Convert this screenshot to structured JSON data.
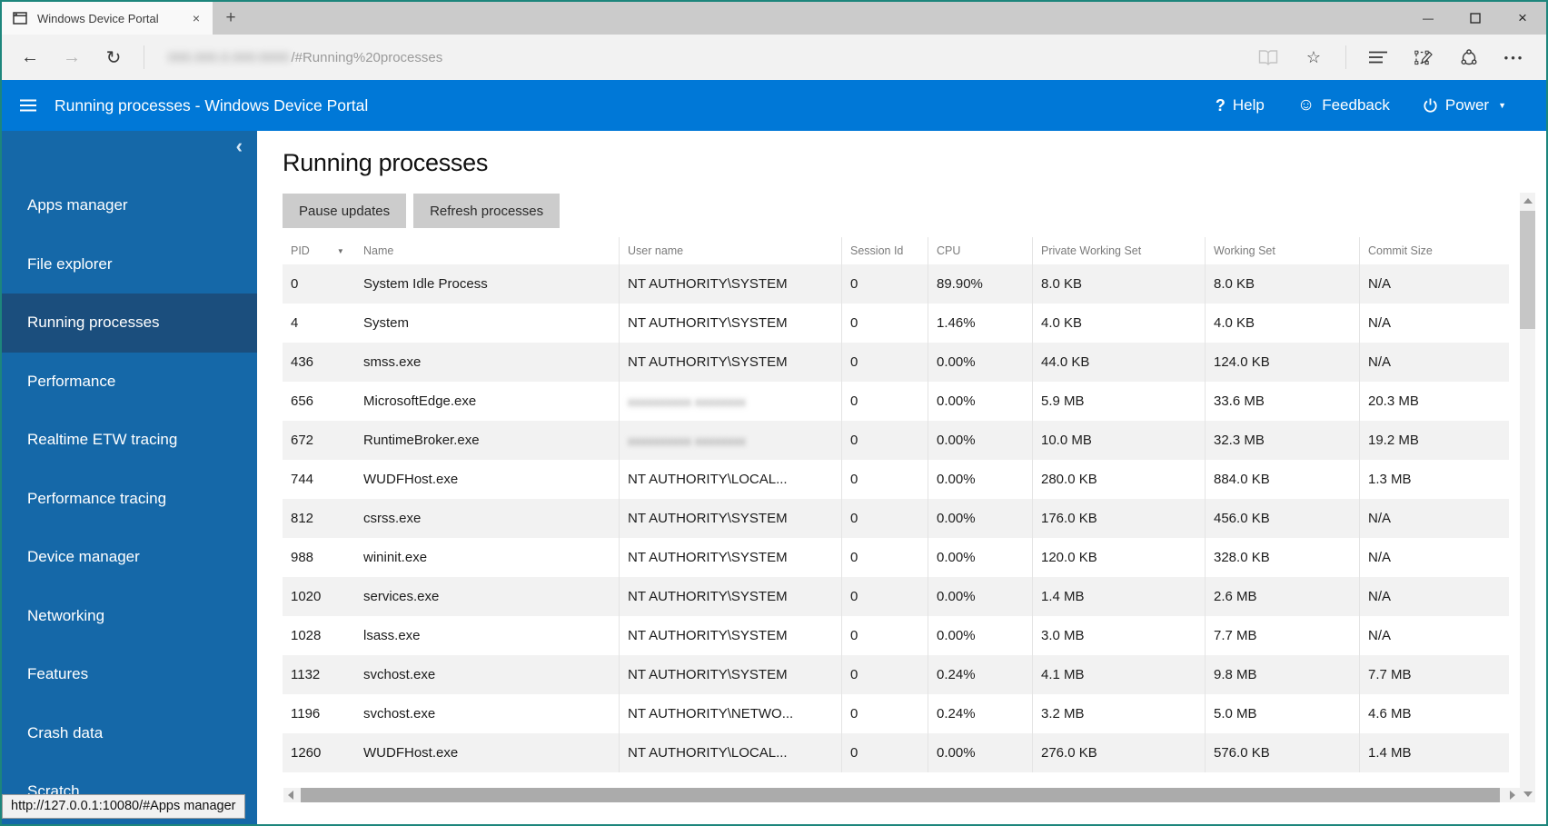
{
  "colors": {
    "accent_blue": "#0078d7",
    "sidebar_blue": "#1568a8",
    "sidebar_selected": "#1b4e7d",
    "window_border_teal": "#1d867c",
    "row_alt": "#f2f2f2"
  },
  "icons": {
    "tab_close": "×",
    "new_tab": "+",
    "minimize": "—",
    "window_close": "×",
    "back": "←",
    "forward": "→",
    "refresh": "↻",
    "star": "☆",
    "more": "•••",
    "help": "?",
    "feedback_smiley": "☺",
    "caret_down": "▼",
    "collapse_chevron": "‹",
    "sort_arrow": "▼"
  },
  "browser": {
    "tab_bar": {
      "active_tab_title": "Windows Device Portal"
    },
    "toolbar": {
      "url_prefix_redacted": true,
      "url_redacted_placeholder": "000.000.0.000:0000",
      "url_visible_suffix": "/#Running%20processes"
    },
    "status_tooltip": "http://127.0.0.1:10080/#Apps manager"
  },
  "portal": {
    "header": {
      "title": "Running processes - Windows Device Portal",
      "help_label": "Help",
      "feedback_label": "Feedback",
      "power_label": "Power"
    },
    "sidebar": {
      "items": [
        {
          "label": "Apps manager",
          "selected": false
        },
        {
          "label": "File explorer",
          "selected": false
        },
        {
          "label": "Running processes",
          "selected": true
        },
        {
          "label": "Performance",
          "selected": false
        },
        {
          "label": "Realtime ETW tracing",
          "selected": false
        },
        {
          "label": "Performance tracing",
          "selected": false
        },
        {
          "label": "Device manager",
          "selected": false
        },
        {
          "label": "Networking",
          "selected": false
        },
        {
          "label": "Features",
          "selected": false
        },
        {
          "label": "Crash data",
          "selected": false
        },
        {
          "label": "Scratch",
          "selected": false
        }
      ]
    },
    "main": {
      "title": "Running processes",
      "pause_button": "Pause updates",
      "refresh_button": "Refresh processes",
      "table": {
        "columns": [
          "PID",
          "Name",
          "User name",
          "Session Id",
          "CPU",
          "Private Working Set",
          "Working Set",
          "Commit Size"
        ],
        "sorted_by": "PID",
        "redacted_user_placeholder": "xxxxxxxxxx xxxxxxxx",
        "rows": [
          {
            "pid": "0",
            "name": "System Idle Process",
            "user": "NT AUTHORITY\\SYSTEM",
            "user_redacted": false,
            "session_id": "0",
            "cpu": "89.90%",
            "private_working_set": "8.0 KB",
            "working_set": "8.0 KB",
            "commit_size": "N/A"
          },
          {
            "pid": "4",
            "name": "System",
            "user": "NT AUTHORITY\\SYSTEM",
            "user_redacted": false,
            "session_id": "0",
            "cpu": "1.46%",
            "private_working_set": "4.0 KB",
            "working_set": "4.0 KB",
            "commit_size": "N/A"
          },
          {
            "pid": "436",
            "name": "smss.exe",
            "user": "NT AUTHORITY\\SYSTEM",
            "user_redacted": false,
            "session_id": "0",
            "cpu": "0.00%",
            "private_working_set": "44.0 KB",
            "working_set": "124.0 KB",
            "commit_size": "N/A"
          },
          {
            "pid": "656",
            "name": "MicrosoftEdge.exe",
            "user": null,
            "user_redacted": true,
            "session_id": "0",
            "cpu": "0.00%",
            "private_working_set": "5.9 MB",
            "working_set": "33.6 MB",
            "commit_size": "20.3 MB"
          },
          {
            "pid": "672",
            "name": "RuntimeBroker.exe",
            "user": null,
            "user_redacted": true,
            "session_id": "0",
            "cpu": "0.00%",
            "private_working_set": "10.0 MB",
            "working_set": "32.3 MB",
            "commit_size": "19.2 MB"
          },
          {
            "pid": "744",
            "name": "WUDFHost.exe",
            "user": "NT AUTHORITY\\LOCAL...",
            "user_redacted": false,
            "session_id": "0",
            "cpu": "0.00%",
            "private_working_set": "280.0 KB",
            "working_set": "884.0 KB",
            "commit_size": "1.3 MB"
          },
          {
            "pid": "812",
            "name": "csrss.exe",
            "user": "NT AUTHORITY\\SYSTEM",
            "user_redacted": false,
            "session_id": "0",
            "cpu": "0.00%",
            "private_working_set": "176.0 KB",
            "working_set": "456.0 KB",
            "commit_size": "N/A"
          },
          {
            "pid": "988",
            "name": "wininit.exe",
            "user": "NT AUTHORITY\\SYSTEM",
            "user_redacted": false,
            "session_id": "0",
            "cpu": "0.00%",
            "private_working_set": "120.0 KB",
            "working_set": "328.0 KB",
            "commit_size": "N/A"
          },
          {
            "pid": "1020",
            "name": "services.exe",
            "user": "NT AUTHORITY\\SYSTEM",
            "user_redacted": false,
            "session_id": "0",
            "cpu": "0.00%",
            "private_working_set": "1.4 MB",
            "working_set": "2.6 MB",
            "commit_size": "N/A"
          },
          {
            "pid": "1028",
            "name": "lsass.exe",
            "user": "NT AUTHORITY\\SYSTEM",
            "user_redacted": false,
            "session_id": "0",
            "cpu": "0.00%",
            "private_working_set": "3.0 MB",
            "working_set": "7.7 MB",
            "commit_size": "N/A"
          },
          {
            "pid": "1132",
            "name": "svchost.exe",
            "user": "NT AUTHORITY\\SYSTEM",
            "user_redacted": false,
            "session_id": "0",
            "cpu": "0.24%",
            "private_working_set": "4.1 MB",
            "working_set": "9.8 MB",
            "commit_size": "7.7 MB"
          },
          {
            "pid": "1196",
            "name": "svchost.exe",
            "user": "NT AUTHORITY\\NETWO...",
            "user_redacted": false,
            "session_id": "0",
            "cpu": "0.24%",
            "private_working_set": "3.2 MB",
            "working_set": "5.0 MB",
            "commit_size": "4.6 MB"
          },
          {
            "pid": "1260",
            "name": "WUDFHost.exe",
            "user": "NT AUTHORITY\\LOCAL...",
            "user_redacted": false,
            "session_id": "0",
            "cpu": "0.00%",
            "private_working_set": "276.0 KB",
            "working_set": "576.0 KB",
            "commit_size": "1.4 MB"
          }
        ]
      }
    }
  }
}
